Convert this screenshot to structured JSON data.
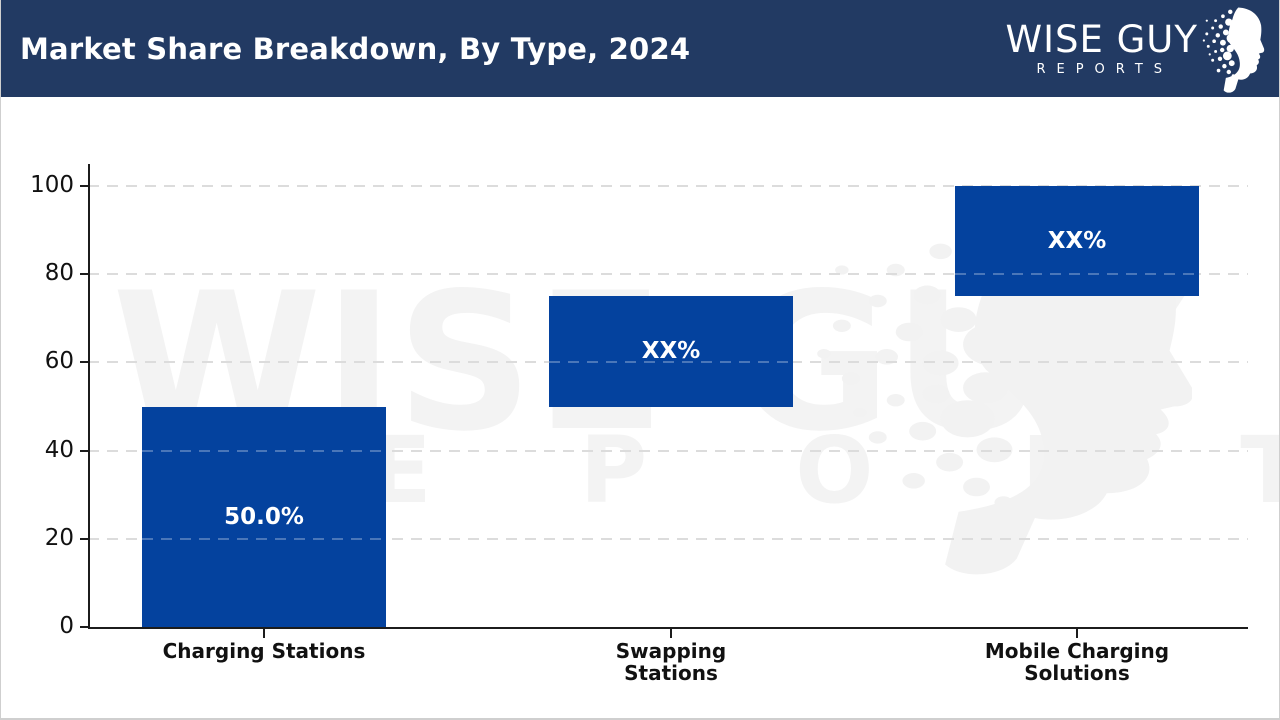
{
  "header": {
    "title": "Market Share Breakdown, By Type, 2024",
    "logo": {
      "line1": "WISE GUY",
      "line2": "REPORTS"
    }
  },
  "watermark": {
    "line1": "WISE GUY",
    "line2": "R E P O R T S"
  },
  "chart_data": {
    "type": "bar",
    "subtype": "floating-range-bars",
    "title": "Market Share Breakdown, By Type, 2024",
    "categories": [
      "Charging Stations",
      "Swapping Stations",
      "Mobile Charging Solutions"
    ],
    "bars": [
      {
        "category": "Charging Stations",
        "from": 0,
        "to": 50,
        "label": "50.0%"
      },
      {
        "category": "Swapping Stations",
        "from": 50,
        "to": 75,
        "label": "XX%"
      },
      {
        "category": "Mobile Charging Solutions",
        "from": 75,
        "to": 100,
        "label": "XX%"
      }
    ],
    "yticks": [
      0,
      20,
      40,
      60,
      80,
      100
    ],
    "ylim": [
      0,
      100
    ],
    "xlabel": "",
    "ylabel": "",
    "grid": "horizontal-dashed",
    "legend": "none",
    "bar_color": "#04429E"
  },
  "colors": {
    "header_bg": "#223A63",
    "bar": "#04429E",
    "grid": "#DCDCDC",
    "axis": "#1C1C1C",
    "watermark": "#F3F3F3",
    "title_text": "#FFFFFF"
  }
}
